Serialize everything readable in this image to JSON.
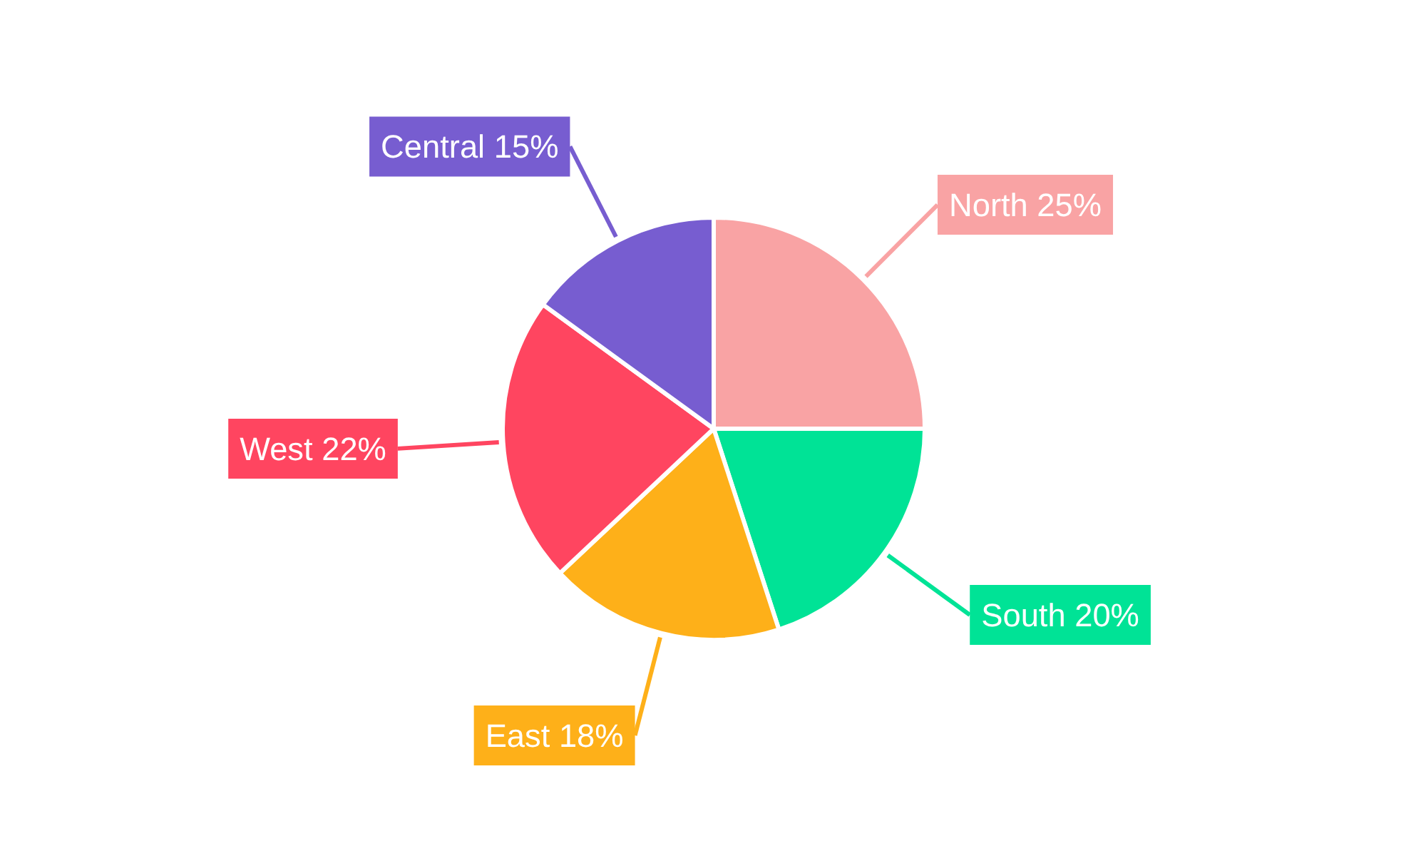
{
  "chart_data": {
    "type": "pie",
    "categories": [
      "North",
      "South",
      "East",
      "West",
      "Central"
    ],
    "values": [
      25,
      20,
      18,
      22,
      15
    ],
    "value_labels": [
      "25%",
      "20%",
      "18%",
      "22%",
      "15%"
    ],
    "colors": [
      "#f9a3a4",
      "#00e396",
      "#feb019",
      "#ff4560",
      "#775dd0"
    ]
  }
}
